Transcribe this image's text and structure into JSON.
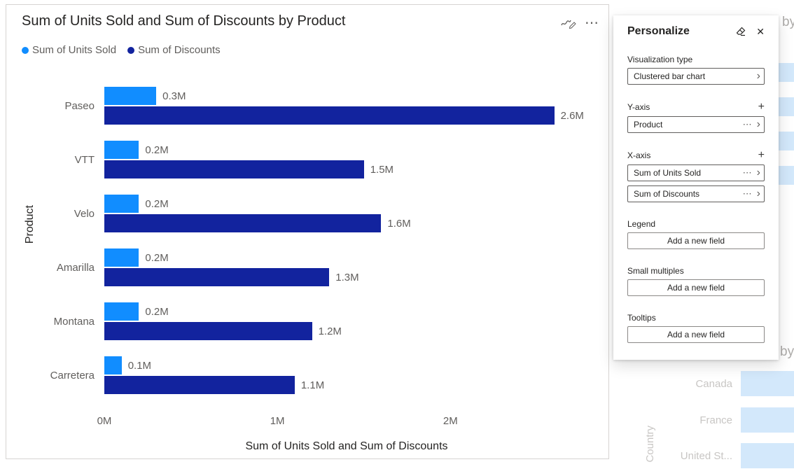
{
  "icons": {
    "close": "✕",
    "more": "⋯",
    "ellipsis": "⋯",
    "chevron": "›",
    "plus": "+"
  },
  "chart": {
    "title": "Sum of Units Sold and Sum of Discounts by Product",
    "legend": [
      {
        "label": "Sum of Units Sold",
        "color": "#118DFF"
      },
      {
        "label": "Sum of Discounts",
        "color": "#12239E"
      }
    ]
  },
  "chart_data": {
    "type": "bar",
    "orientation": "horizontal",
    "title": "Sum of Units Sold and Sum of Discounts by Product",
    "categories": [
      "Paseo",
      "VTT",
      "Velo",
      "Amarilla",
      "Montana",
      "Carretera"
    ],
    "series": [
      {
        "name": "Sum of Units Sold",
        "color": "#118DFF",
        "values": [
          0.3,
          0.2,
          0.2,
          0.2,
          0.2,
          0.1
        ],
        "labels": [
          "0.3M",
          "0.2M",
          "0.2M",
          "0.2M",
          "0.2M",
          "0.1M"
        ]
      },
      {
        "name": "Sum of Discounts",
        "color": "#12239E",
        "values": [
          2.6,
          1.5,
          1.6,
          1.3,
          1.2,
          1.1
        ],
        "labels": [
          "2.6M",
          "1.5M",
          "1.6M",
          "1.3M",
          "1.2M",
          "1.1M"
        ]
      }
    ],
    "xlabel": "Sum of Units Sold and Sum of Discounts",
    "ylabel": "Product",
    "xlim": [
      0,
      2.8
    ],
    "x_ticks": [
      {
        "value": 0,
        "label": "0M"
      },
      {
        "value": 1,
        "label": "1M"
      },
      {
        "value": 2,
        "label": "2M"
      }
    ],
    "grid": false,
    "legend_position": "top-left"
  },
  "panel": {
    "title": "Personalize",
    "visualization_type": {
      "label": "Visualization type",
      "value": "Clustered bar chart"
    },
    "y_axis": {
      "label": "Y-axis",
      "fields": [
        "Product"
      ]
    },
    "x_axis": {
      "label": "X-axis",
      "fields": [
        "Sum of Units Sold",
        "Sum of Discounts"
      ]
    },
    "legend": {
      "label": "Legend",
      "button": "Add a new field"
    },
    "small_multiples": {
      "label": "Small multiples",
      "button": "Add a new field"
    },
    "tooltips": {
      "label": "Tooltips",
      "button": "Add a new field"
    }
  },
  "background": {
    "top_right_text": "by",
    "mid_right_text": "by",
    "countries": [
      "Canada",
      "France",
      "United St..."
    ],
    "country_axis_label": "Country"
  }
}
